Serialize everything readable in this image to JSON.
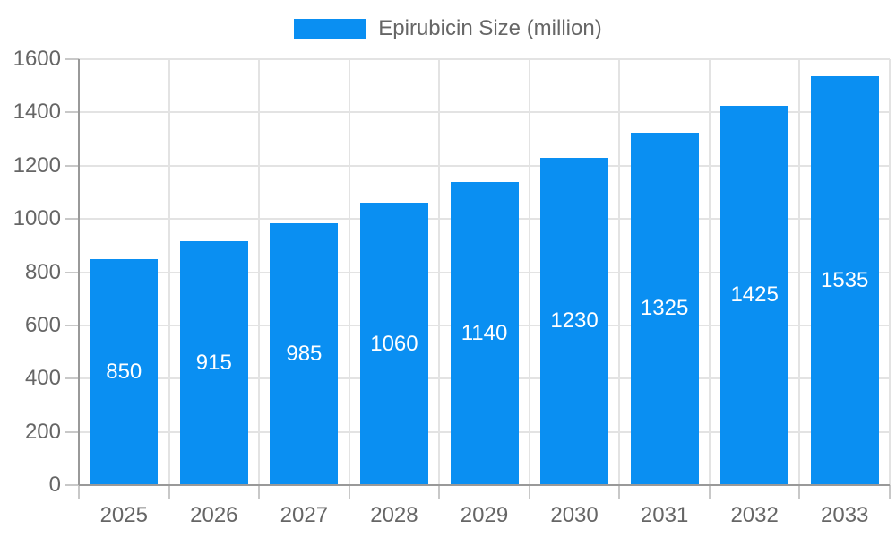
{
  "legend": {
    "label": "Epirubicin Size (million)"
  },
  "colors": {
    "bar": "#0a8ff2",
    "axis_line": "#999999",
    "gridline": "#e3e3e3",
    "tick": "#c8c8c8",
    "axis_text": "#666666",
    "bar_label_text": "#ffffff",
    "background": "#ffffff"
  },
  "chart_data": {
    "type": "bar",
    "title": "",
    "categories": [
      "2025",
      "2026",
      "2027",
      "2028",
      "2029",
      "2030",
      "2031",
      "2032",
      "2033"
    ],
    "values": [
      850,
      915,
      985,
      1060,
      1140,
      1230,
      1325,
      1425,
      1535
    ],
    "series_name": "Epirubicin Size (million)",
    "xlabel": "",
    "ylabel": "",
    "ylim": [
      0,
      1600
    ],
    "yticks": [
      0,
      200,
      400,
      600,
      800,
      1000,
      1200,
      1400,
      1600
    ],
    "grid": true,
    "legend_position": "top-center",
    "bar_labels": "inside-middle"
  }
}
